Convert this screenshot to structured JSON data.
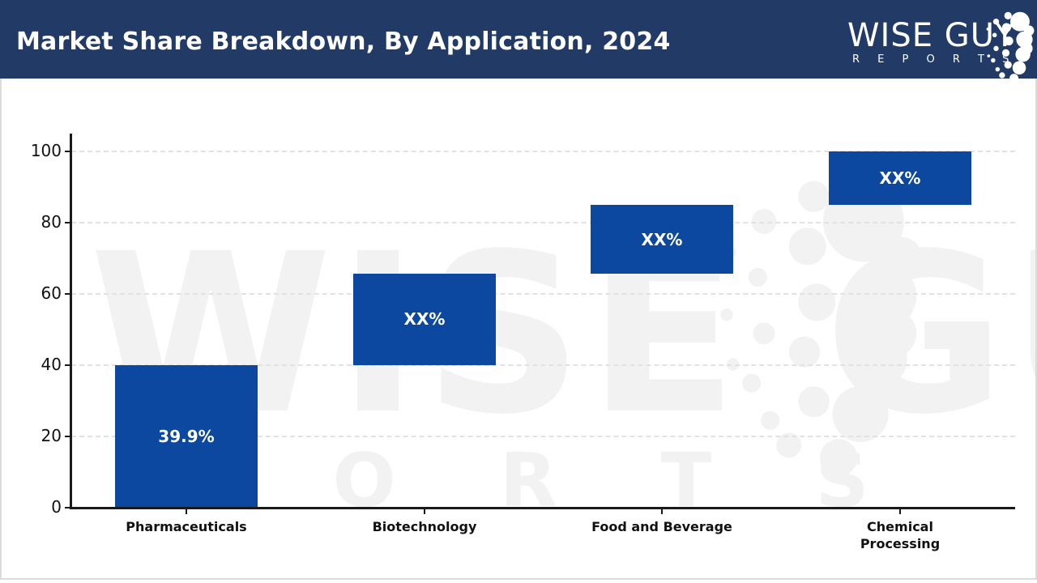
{
  "header": {
    "title": "Market Share Breakdown, By Application, 2024",
    "logo": {
      "name": "WISE GUY",
      "subtitle": "R E P O R T S"
    }
  },
  "watermark": {
    "line1": "WISE GUY",
    "line2": "P O R T S"
  },
  "chart_data": {
    "type": "bar",
    "variant": "waterfall",
    "title": "Market Share Breakdown, By Application, 2024",
    "categories": [
      "Pharmaceuticals",
      "Biotechnology",
      "Food and Beverage",
      "Chemical\nProcessing"
    ],
    "segments": [
      {
        "category": "Pharmaceuticals",
        "from": 0,
        "to": 39.9,
        "label": "39.9%"
      },
      {
        "category": "Biotechnology",
        "from": 40,
        "to": 65.6,
        "label": "XX%"
      },
      {
        "category": "Food and Beverage",
        "from": 65.6,
        "to": 85,
        "label": "XX%"
      },
      {
        "category": "Chemical Processing",
        "from": 85,
        "to": 100,
        "label": "XX%"
      }
    ],
    "ylim": [
      0,
      100
    ],
    "yticks": [
      0,
      20,
      40,
      60,
      80,
      100
    ],
    "grid": "horizontal-dashed",
    "legend": "none",
    "xlabel": "",
    "ylabel": ""
  },
  "colors": {
    "header_bg": "#213a66",
    "bar": "#0c47a0",
    "bar_label": "#ffffff",
    "axis": "#1a1a1a",
    "grid": "#e2e2e2",
    "watermark": "#f2f2f2",
    "border": "#dcdcdc"
  }
}
